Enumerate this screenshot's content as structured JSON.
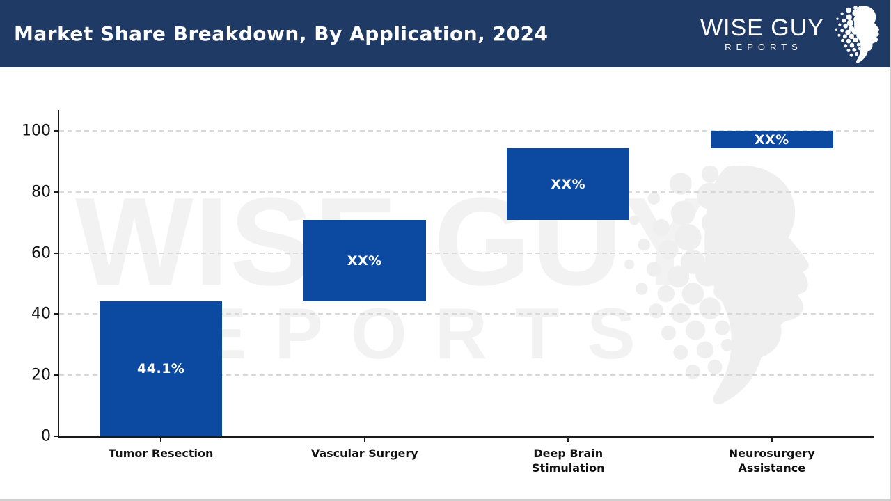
{
  "header": {
    "title": "Market Share Breakdown, By Application, 2024",
    "logo": {
      "wordmark": "WISE GUY",
      "subtitle": "REPORTS"
    }
  },
  "watermark": {
    "wordmark": "WISE GUY",
    "subtitle": "REPORTS"
  },
  "colors": {
    "header_bg": "#203A66",
    "bar": "#0B4AA0",
    "bar_label": "#FFFFFF",
    "axis": "#1A1A1A",
    "gridline": "#D9D9D9",
    "watermark": "#F2F2F2",
    "page_border": "#CFCFCF"
  },
  "chart_data": {
    "type": "bar",
    "subtype": "floating_stacked_percentage",
    "title": "Market Share Breakdown, By Application, 2024",
    "categories": [
      "Tumor Resection",
      "Vascular Surgery",
      "Deep Brain Stimulation",
      "Neurosurgery Assistance"
    ],
    "category_label_lines": [
      [
        "Tumor Resection"
      ],
      [
        "Vascular Surgery"
      ],
      [
        "Deep Brain",
        "Stimulation"
      ],
      [
        "Neurosurgery",
        "Assistance"
      ]
    ],
    "segments": [
      {
        "category": "Tumor Resection",
        "start": 0,
        "end": 44.1,
        "label": "44.1%"
      },
      {
        "category": "Vascular Surgery",
        "start": 44.1,
        "end": 70.9,
        "label": "XX%"
      },
      {
        "category": "Deep Brain Stimulation",
        "start": 70.9,
        "end": 94.2,
        "label": "XX%"
      },
      {
        "category": "Neurosurgery Assistance",
        "start": 94.2,
        "end": 100,
        "label": "XX%"
      }
    ],
    "y_ticks": [
      0,
      20,
      40,
      60,
      80,
      100
    ],
    "ylim": [
      0,
      106.8
    ],
    "xlabel": "",
    "ylabel": "",
    "grid": "horizontal_dashed",
    "legend": "none"
  }
}
